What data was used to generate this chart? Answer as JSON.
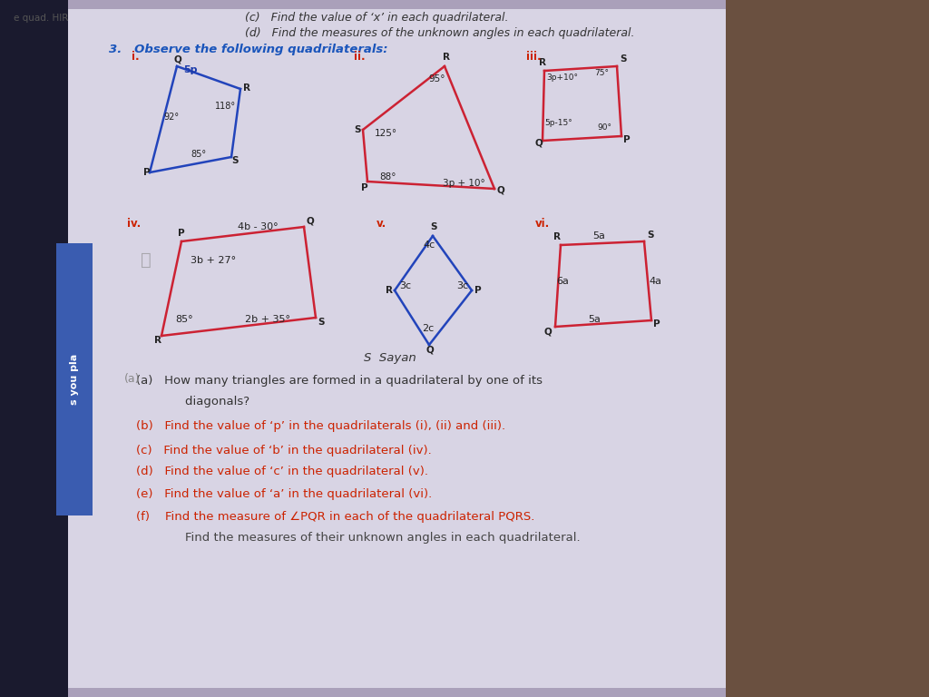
{
  "bg_color": "#b8b0c8",
  "page_bg": "#ddd8e8",
  "header": [
    "(c)   Find the value of ‘x’ in each quadrilateral.",
    "(d)   Find the measures of the unknown angles in each quadrilateral."
  ],
  "section3": "3.   Observe the following quadrilaterals:",
  "left_margin": "e quad. HIR",
  "blue_strip_text": "s you pla",
  "script_header": "S  Sayan",
  "questions": [
    "(a)   How many triangles are formed in a quadrilateral by one of its",
    "        diagonals?",
    "(b)   Find the value of ‘p’ in the quadrilaterals (i), (ii) and (iii).",
    "(c)   Find the value of ‘b’ in the quadrilateral (iv).",
    "(d)   Find the value of ‘c’ in the quadrilateral (v).",
    "(e)   Find the value of ‘a’ in the quadrilateral (vi).",
    "(f)    Find the measure of ∠PQR in each of the quadrilateral PQRS.",
    "        Find the measures of their unknown angles in each quadrilateral."
  ],
  "q_colors": [
    "#333333",
    "#333333",
    "#cc2200",
    "#cc2200",
    "#cc2200",
    "#cc2200",
    "#cc2200",
    "#444444"
  ],
  "blue_quad_color": "#2244bb",
  "red_quad_color": "#cc2233",
  "text_dark": "#222222",
  "label_red": "#cc2200"
}
